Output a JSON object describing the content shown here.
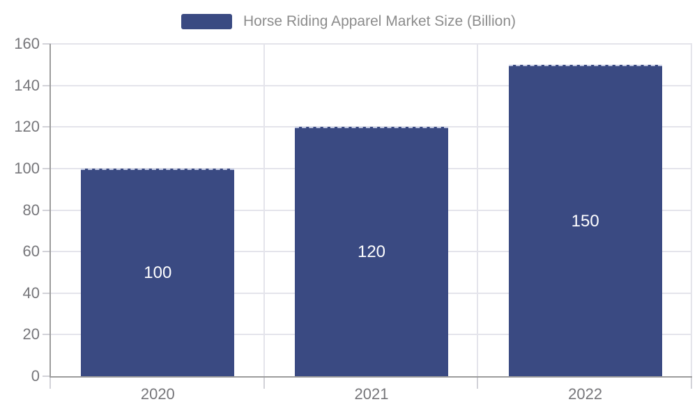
{
  "chart_data": {
    "type": "bar",
    "title": "Horse Riding Apparel Market Size (Billion)",
    "categories": [
      "2020",
      "2021",
      "2022"
    ],
    "values": [
      100,
      120,
      150
    ],
    "data_labels": [
      "100",
      "120",
      "150"
    ],
    "xlabel": "",
    "ylabel": "",
    "ylim": [
      0,
      160
    ],
    "y_ticks": [
      0,
      20,
      40,
      60,
      80,
      100,
      120,
      140,
      160
    ],
    "grid": true,
    "legend_position": "top-center",
    "colors": {
      "bar": "#3A4A82",
      "bar_top_dash": "#C2C9E2",
      "bar_label": "#FFFFFF",
      "grid_line": "#E4E4EB",
      "axis_line": "#9C9C9C",
      "tick_mark": "#D2D2D8",
      "tick_label": "#76767A",
      "legend_text": "#8C8C8C",
      "background": "#FFFFFF"
    }
  }
}
